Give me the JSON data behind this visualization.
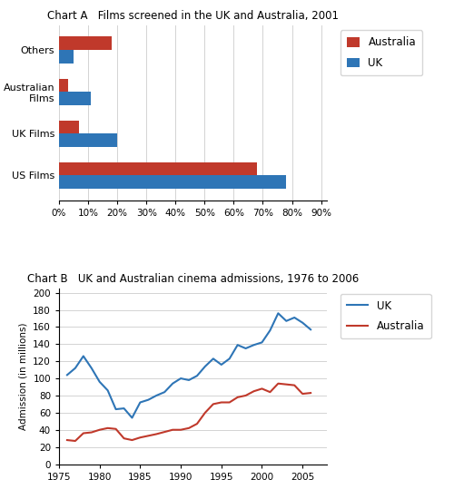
{
  "chart_a": {
    "title": "Chart A   Films screened in the UK and Australia, 2001",
    "categories": [
      "US Films",
      "UK Films",
      "Australian\nFilms",
      "Others"
    ],
    "australia": [
      0.68,
      0.07,
      0.03,
      0.18
    ],
    "uk": [
      0.78,
      0.2,
      0.11,
      0.05
    ],
    "australia_color": "#C0392B",
    "uk_color": "#2E75B6",
    "xticks": [
      0.0,
      0.1,
      0.2,
      0.3,
      0.4,
      0.5,
      0.6,
      0.7,
      0.8,
      0.9
    ],
    "xtick_labels": [
      "0%",
      "10%",
      "20%",
      "30%",
      "40%",
      "50%",
      "60%",
      "70%",
      "80%",
      "90%"
    ],
    "xlim": [
      0,
      0.92
    ]
  },
  "chart_b": {
    "title": "Chart B   UK and Australian cinema admissions, 1976 to 2006",
    "ylabel": "Admission (in millions)",
    "uk_years": [
      1976,
      1977,
      1978,
      1979,
      1980,
      1981,
      1982,
      1983,
      1984,
      1985,
      1986,
      1987,
      1988,
      1989,
      1990,
      1991,
      1992,
      1993,
      1994,
      1995,
      1996,
      1997,
      1998,
      1999,
      2000,
      2001,
      2002,
      2003,
      2004,
      2005,
      2006
    ],
    "uk_values": [
      104,
      112,
      126,
      112,
      96,
      86,
      64,
      65,
      54,
      72,
      75,
      80,
      84,
      94,
      100,
      98,
      103,
      114,
      123,
      116,
      123,
      139,
      135,
      139,
      142,
      156,
      176,
      167,
      171,
      165,
      157
    ],
    "aus_years": [
      1976,
      1977,
      1978,
      1979,
      1980,
      1981,
      1982,
      1983,
      1984,
      1985,
      1986,
      1987,
      1989,
      1990,
      1991,
      1992,
      1993,
      1994,
      1995,
      1996,
      1997,
      1998,
      1999,
      2000,
      2001,
      2002,
      2003,
      2004,
      2005,
      2006
    ],
    "aus_values": [
      28,
      27,
      36,
      37,
      40,
      42,
      41,
      30,
      28,
      31,
      33,
      35,
      40,
      40,
      42,
      47,
      60,
      70,
      72,
      72,
      78,
      80,
      85,
      88,
      84,
      94,
      93,
      92,
      82,
      83
    ],
    "uk_color": "#2E75B6",
    "aus_color": "#C0392B",
    "yticks": [
      0,
      20,
      40,
      60,
      80,
      100,
      120,
      140,
      160,
      180,
      200
    ],
    "xticks": [
      1975,
      1980,
      1985,
      1990,
      1995,
      2000,
      2005
    ],
    "ylim": [
      0,
      205
    ],
    "xlim": [
      1975,
      2008
    ]
  }
}
